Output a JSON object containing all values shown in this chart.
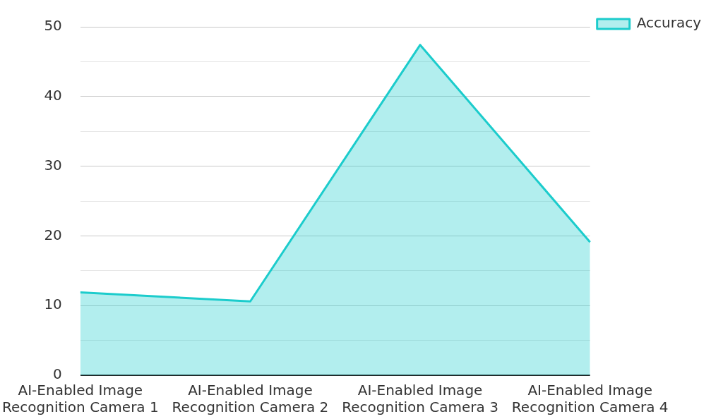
{
  "chart_data": {
    "type": "area",
    "categories": [
      "AI-Enabled Image Recognition Camera 1",
      "AI-Enabled Image Recognition Camera 2",
      "AI-Enabled Image Recognition Camera 3",
      "AI-Enabled Image Recognition Camera 4"
    ],
    "series": [
      {
        "name": "Accuracy",
        "color": "#1ccccc",
        "values": [
          11.9,
          10.6,
          47.4,
          19.1
        ]
      }
    ],
    "ylim": [
      0,
      50
    ],
    "yticks": [
      0,
      {
        "value": 5,
        "label": null
      },
      10,
      {
        "value": 15,
        "label": null
      },
      20,
      {
        "value": 25,
        "label": null
      },
      30,
      {
        "value": 35,
        "label": null
      },
      40,
      {
        "value": 45,
        "label": null
      },
      50
    ],
    "grid": "y",
    "legend": "top right"
  }
}
